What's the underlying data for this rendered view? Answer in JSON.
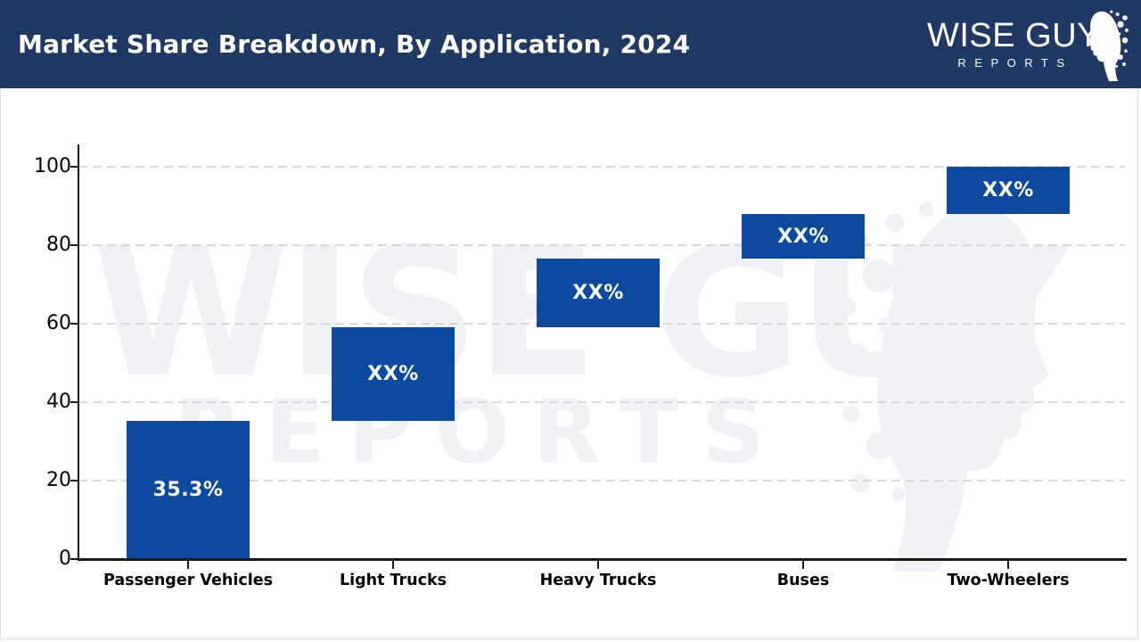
{
  "header": {
    "title": "Market Share Breakdown, By Application, 2024",
    "bg_color": "#1F3864",
    "logo": {
      "line1": "WISE GUY",
      "line2": "REPORTS"
    }
  },
  "watermark": {
    "line1": "WISE GUY",
    "line2": "REPORTS"
  },
  "chart_data": {
    "type": "bar",
    "subtype": "waterfall",
    "title": "Market Share Breakdown, By Application, 2024",
    "categories": [
      "Passenger Vehicles",
      "Light Trucks",
      "Heavy Trucks",
      "Buses",
      "Two-Wheelers"
    ],
    "segments": [
      {
        "category": "Passenger Vehicles",
        "label": "35.3%",
        "start": 0,
        "end": 35.3
      },
      {
        "category": "Light Trucks",
        "label": "XX%",
        "start": 35.3,
        "end": 59
      },
      {
        "category": "Heavy Trucks",
        "label": "XX%",
        "start": 59,
        "end": 76.5
      },
      {
        "category": "Buses",
        "label": "XX%",
        "start": 76.5,
        "end": 88
      },
      {
        "category": "Two-Wheelers",
        "label": "XX%",
        "start": 88,
        "end": 100
      }
    ],
    "yticks": [
      0,
      20,
      40,
      60,
      80,
      100
    ],
    "ylim": [
      0,
      106
    ],
    "xlabel": "",
    "ylabel": "",
    "grid": "horizontal-dashed",
    "legend": "none",
    "bar_color": "#0B4A9E",
    "bar_label_color": "#ffffff",
    "axis_color": "#1a1a1a",
    "gridline_color": "#d8d8d8"
  }
}
